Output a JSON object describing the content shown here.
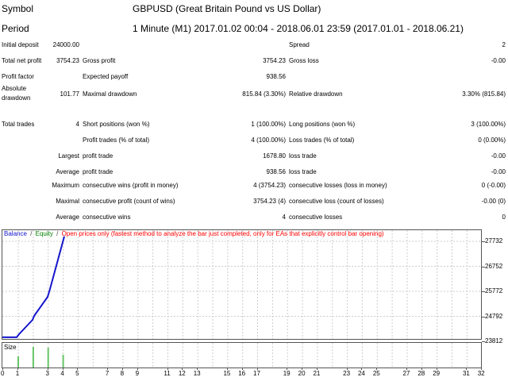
{
  "header": {
    "symbol_label": "Symbol",
    "symbol_value": "GBPUSD (Great Britain Pound vs US Dollar)",
    "period_label": "Period",
    "period_value": "1 Minute (M1) 2017.01.02 00:04 - 2018.06.01 23:59 (2017.01.01 - 2018.06.21)"
  },
  "report_rows": [
    {
      "l1": "Initial deposit",
      "v1": "24000.00",
      "l2": "",
      "v2": "",
      "l3": "Spread",
      "v3": "2"
    },
    {
      "l1": "Total net profit",
      "v1": "3754.23",
      "l2": "Gross profit",
      "v2": "3754.23",
      "l3": "Gross loss",
      "v3": "-0.00"
    },
    {
      "l1": "Profit factor",
      "v1": "",
      "l2": "Expected payoff",
      "v2": "938.56",
      "l3": "",
      "v3": ""
    },
    {
      "l1": "Absolute drawdown",
      "v1": "101.77",
      "l2": "Maximal drawdown",
      "v2": "815.84 (3.30%)",
      "l3": "Relative drawdown",
      "v3": "3.30% (815.84)"
    },
    {
      "l1": "Total trades",
      "v1": "4",
      "l2": "Short positions (won %)",
      "v2": "1 (100.00%)",
      "l3": "Long positions (won %)",
      "v3": "3 (100.00%)"
    },
    {
      "l1": "",
      "v1": "",
      "l2": "Profit trades (% of total)",
      "v2": "4 (100.00%)",
      "l3": "Loss trades (% of total)",
      "v3": "0 (0.00%)"
    },
    {
      "l1": "",
      "v1": "Largest",
      "l2": "profit trade",
      "v2": "1678.80",
      "l3": "loss trade",
      "v3": "-0.00"
    },
    {
      "l1": "",
      "v1": "Average",
      "l2": "profit trade",
      "v2": "938.56",
      "l3": "loss trade",
      "v3": "-0.00"
    },
    {
      "l1": "",
      "v1": "Maximum",
      "l2": "consecutive wins (profit in money)",
      "v2": "4 (3754.23)",
      "l3": "consecutive losses (loss in money)",
      "v3": "0 (-0.00)"
    },
    {
      "l1": "",
      "v1": "Maximal",
      "l2": "consecutive profit (count of wins)",
      "v2": "3754.23 (4)",
      "l3": "consecutive loss (count of losses)",
      "v3": "-0.00 (0)"
    },
    {
      "l1": "",
      "v1": "Average",
      "l2": "consecutive wins",
      "v2": "4",
      "l3": "consecutive losses",
      "v3": "0"
    }
  ],
  "chart_data": {
    "type": "line",
    "legend": {
      "balance_label": "Balance",
      "equity_label": "Equity",
      "separator": "/",
      "note": "Open prices only (fastest method to analyze the bar just completed, only for EAs that explicitly control bar opening)"
    },
    "size_panel_label": "Size",
    "y_ticks": [
      "27732",
      "26752",
      "25772",
      "24792",
      "23812"
    ],
    "x_tick_labels": [
      0,
      1,
      3,
      4,
      5,
      7,
      8,
      9,
      11,
      12,
      13,
      15,
      16,
      17,
      19,
      20,
      21,
      23,
      24,
      25,
      27,
      28,
      29,
      31,
      32
    ],
    "x_max": 32,
    "balance_series": {
      "x": [
        0,
        1,
        2,
        3,
        4
      ],
      "values": [
        24000,
        24650,
        25550,
        26075,
        27754.23
      ]
    },
    "curve_norm": [
      [
        0,
        0.985
      ],
      [
        0.0299,
        0.985
      ],
      [
        0.0348,
        0.956
      ],
      [
        0.063,
        0.825
      ],
      [
        0.0663,
        0.788
      ],
      [
        0.0945,
        0.613
      ],
      [
        0.0995,
        0.54
      ],
      [
        0.1294,
        0.058
      ]
    ],
    "lot_size_bars": [
      {
        "x": 1,
        "h": 0.45
      },
      {
        "x": 2,
        "h": 0.84
      },
      {
        "x": 3,
        "h": 0.81
      },
      {
        "x": 4,
        "h": 0.52
      }
    ],
    "grid": true,
    "legend_position": "top-left",
    "colors": {
      "balance": "#1515cd",
      "equity": "#008000",
      "note": "#ff0000",
      "grid": "#cdcdcd",
      "bars": "#66c566",
      "border": "#555555",
      "text": "#000000"
    }
  }
}
